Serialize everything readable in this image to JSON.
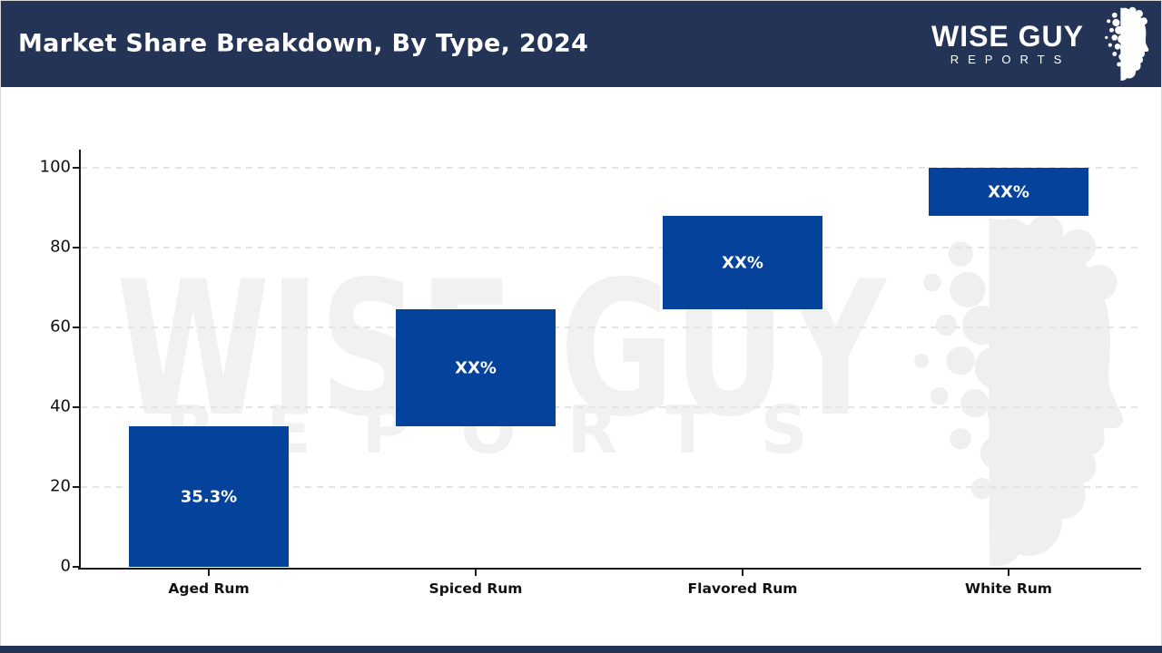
{
  "header": {
    "title": "Market Share Breakdown, By Type, 2024",
    "logo": {
      "line1": "WISE GUY",
      "line2": "REPORTS"
    }
  },
  "watermark": {
    "line1": "WISE GUY",
    "line2": "REPORTS"
  },
  "colors": {
    "header_bg": "#243457",
    "footer_bg": "#243457",
    "bar_blue": "#04429c",
    "bar_label_text": "#ffffff",
    "axis": "#1a1a1a",
    "gridline": "#e4e4e4",
    "watermark": "#f1f1f1",
    "page_border": "#d8d8d8"
  },
  "chart_data": {
    "type": "bar",
    "subtype": "waterfall",
    "title": "Market Share Breakdown, By Type, 2024",
    "categories": [
      "Aged Rum",
      "Spiced Rum",
      "Flavored Rum",
      "White Rum"
    ],
    "segments": [
      [
        0,
        35.3
      ],
      [
        35.3,
        64.5
      ],
      [
        64.5,
        88.0
      ],
      [
        88.0,
        100.0
      ]
    ],
    "values": [
      35.3,
      29.2,
      23.5,
      12.0
    ],
    "bar_labels": [
      "35.3%",
      "XX%",
      "XX%",
      "XX%"
    ],
    "xlabel": "",
    "ylabel": "",
    "ylim": [
      0,
      100
    ],
    "yticks": [
      0,
      20,
      40,
      60,
      80,
      100
    ],
    "grid": "horizontal-dashed",
    "legend": "none",
    "bar_color": "#04429c",
    "bar_label_color": "#ffffff"
  }
}
